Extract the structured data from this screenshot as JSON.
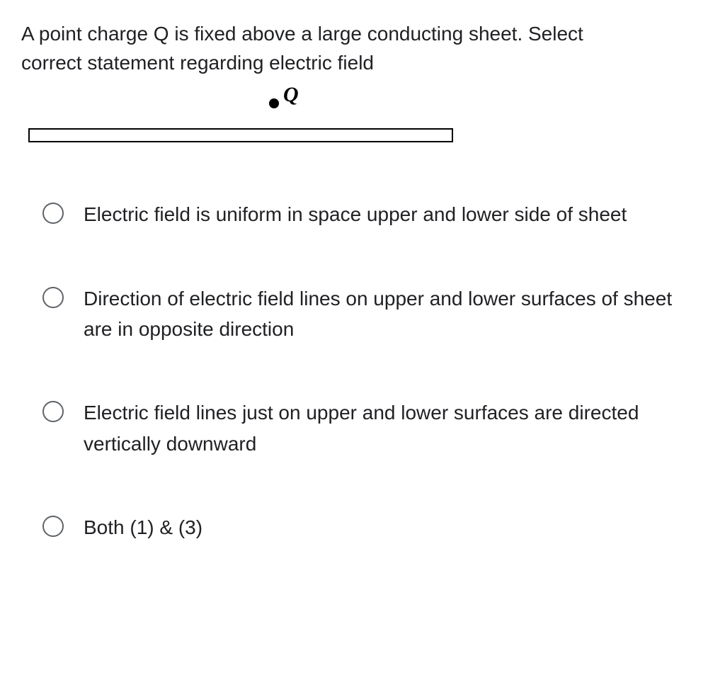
{
  "question": {
    "line1": "A point charge Q is fixed above a large conducting sheet. Select",
    "line2": "correct statement regarding electric field"
  },
  "diagram": {
    "charge_label": "Q",
    "charge_dot_color": "#000000",
    "sheet_border_color": "#000000",
    "sheet_fill": "#ffffff"
  },
  "options": [
    {
      "text": "Electric field is uniform in space upper and lower side of sheet",
      "selected": false
    },
    {
      "text": "Direction of electric field lines on upper and lower surfaces of sheet are in opposite direction",
      "selected": false
    },
    {
      "text": "Electric field lines just on upper and lower surfaces are directed vertically downward",
      "selected": false
    },
    {
      "text": "Both (1) & (3)",
      "selected": false
    }
  ],
  "colors": {
    "text": "#202124",
    "radio_border": "#5f6368",
    "background": "#ffffff"
  },
  "typography": {
    "question_fontsize": 28,
    "option_fontsize": 28,
    "charge_fontsize": 30
  }
}
